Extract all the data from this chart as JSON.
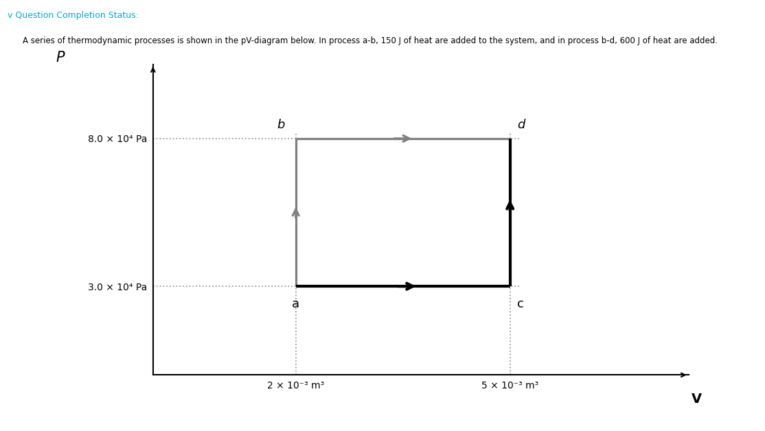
{
  "title_bar": "v Question Completion Status:",
  "description": "A series of thermodynamic processes is shown in the pV-diagram below. In process a-b, 150 J of heat are added to the system, and in process b-d, 600 J of heat are added.",
  "points": {
    "a": [
      0.002,
      30000
    ],
    "b": [
      0.002,
      80000
    ],
    "c": [
      0.005,
      30000
    ],
    "d": [
      0.005,
      80000
    ]
  },
  "ylabel": "P",
  "xlabel": "V",
  "y_ticks": [
    30000,
    80000
  ],
  "y_tick_labels": [
    "3.0 × 10⁴ Pa",
    "8.0 × 10⁴ Pa"
  ],
  "x_ticks": [
    0.002,
    0.005
  ],
  "x_tick_labels": [
    "2 × 10⁻³ m³",
    "5 × 10⁻³ m³"
  ],
  "xlim": [
    0,
    0.0075
  ],
  "ylim": [
    0,
    105000
  ],
  "dotted_lines_color": "#999999",
  "bg_color": "#ffffff",
  "title_color": "#00aacc"
}
